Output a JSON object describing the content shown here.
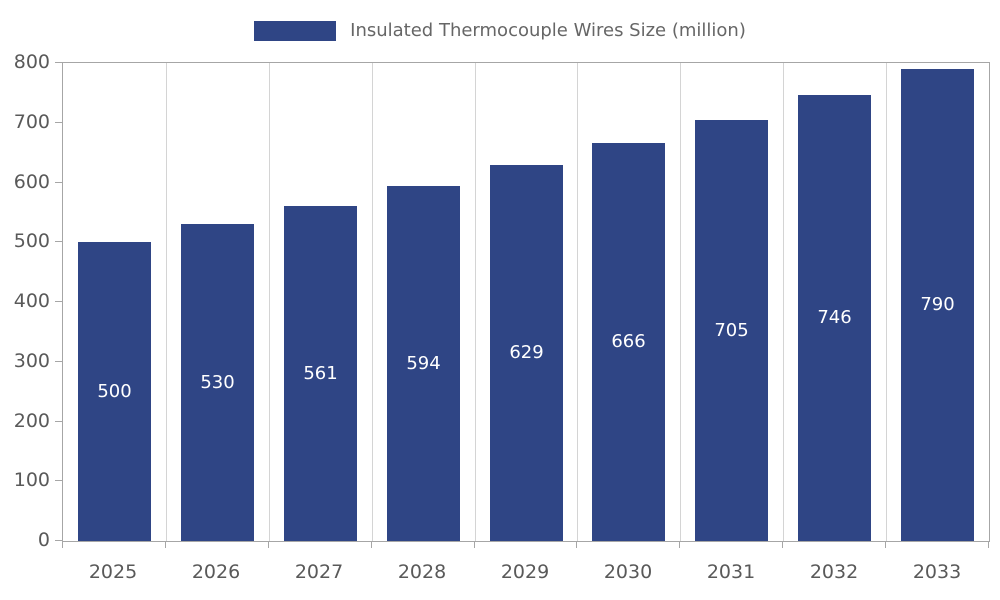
{
  "legend": {
    "label": "Insulated Thermocouple Wires Size (million)"
  },
  "chart_data": {
    "type": "bar",
    "title": "Insulated Thermocouple Wires Size (million)",
    "categories": [
      "2025",
      "2026",
      "2027",
      "2028",
      "2029",
      "2030",
      "2031",
      "2032",
      "2033"
    ],
    "values": [
      500,
      530,
      561,
      594,
      629,
      666,
      705,
      746,
      790
    ],
    "xlabel": "",
    "ylabel": "",
    "ylim": [
      0,
      800
    ],
    "ytick_step": 100,
    "ytick_labels": [
      "0",
      "100",
      "200",
      "300",
      "400",
      "500",
      "600",
      "700",
      "800"
    ],
    "grid": "vertical-category-separators",
    "legend_position": "top-center",
    "value_labels": "inside-center-white",
    "colors": {
      "bar": "#2F4585",
      "value_label": "#ffffff",
      "axis_text": "#595959",
      "legend_text": "#666666",
      "gridline": "#d4d4d4",
      "plot_border": "#a6a6a6"
    }
  }
}
